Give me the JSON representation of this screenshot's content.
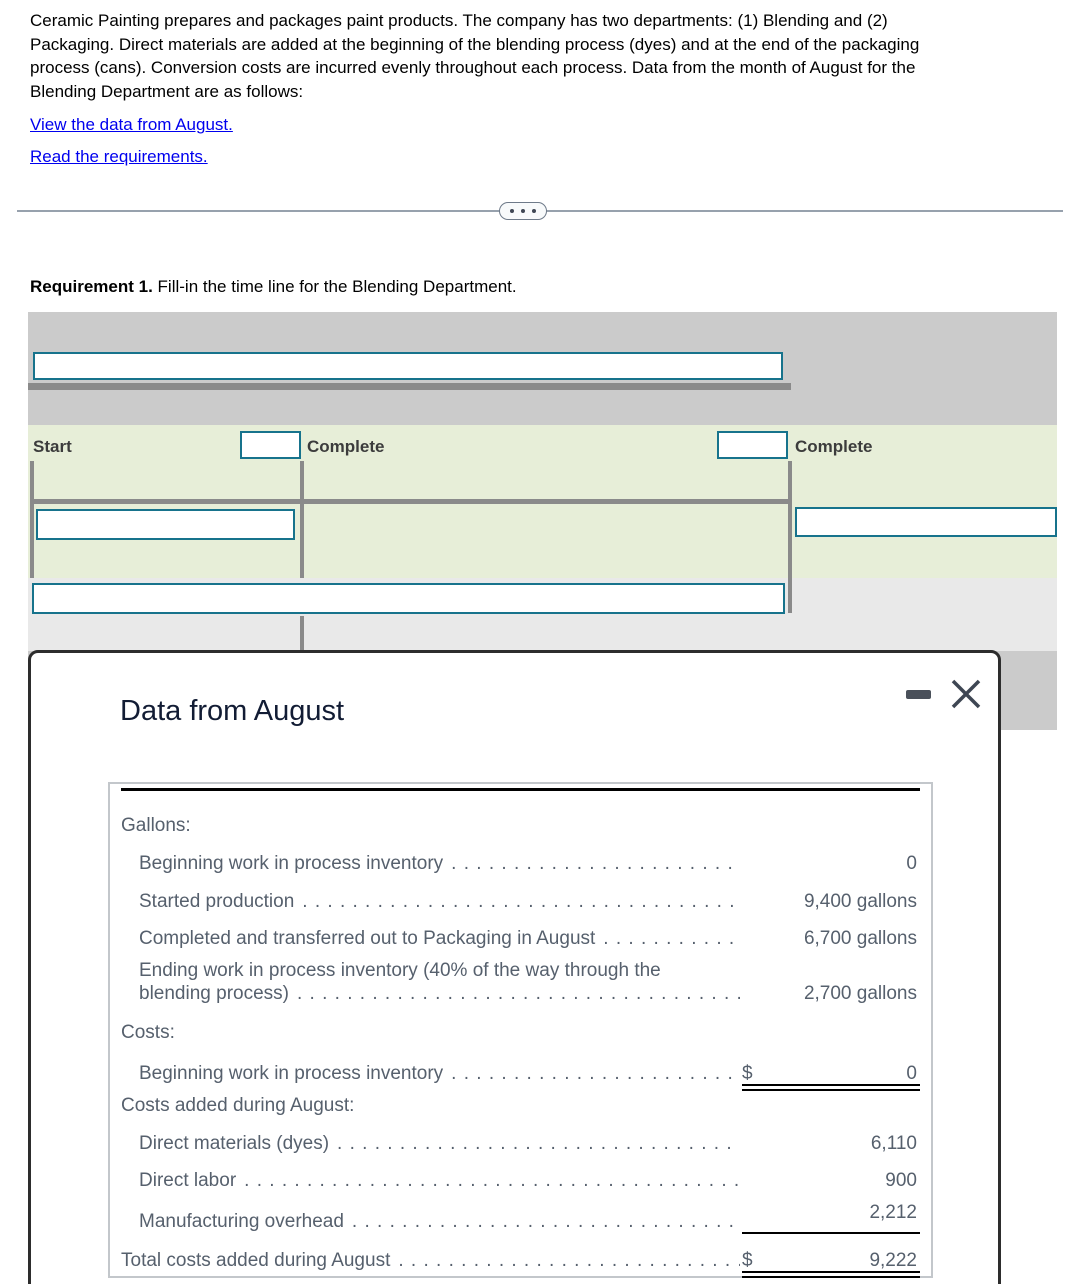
{
  "intro": {
    "lines": [
      "Ceramic Painting prepares and packages paint products. The company has two departments: (1) Blending and (2)",
      "Packaging. Direct materials are added at the beginning of the blending process (dyes) and at the end of the packaging",
      "process (cans). Conversion costs are incurred evenly throughout each process. Data from the month of August for the",
      "Blending Department are as follows:"
    ],
    "links": {
      "view_data": "View the data from August.",
      "read_requirements": "Read the requirements."
    }
  },
  "divider": {
    "ellipsis_button": "collapse-expand"
  },
  "requirement": {
    "bold": "Requirement 1.",
    "text": " Fill-in the time line for the Blending Department."
  },
  "timeline": {
    "labels": {
      "start": "Start",
      "complete1": "Complete",
      "complete2": "Complete"
    },
    "inputs": {
      "top": "",
      "percent1": "",
      "percent2": "",
      "row2_left": "",
      "row2_right": "",
      "row3": ""
    }
  },
  "modal": {
    "title": "Data from August",
    "controls": {
      "minimize": "minimize",
      "close": "close"
    },
    "table": {
      "leader": ". . . . . . . . . . . . . . . . . . . . . . . . . . . . . . . . . . . . . . . . . . . . . . . . . . . . . . . . . . . . . . . . . . . . . . . . . . . . ",
      "rows": [
        {
          "label": "Gallons:",
          "indent": 0
        },
        {
          "label": "Beginning work in process inventory",
          "indent": 1,
          "value": "0",
          "leader": true,
          "mt": "mt17"
        },
        {
          "label": "Started production",
          "indent": 1,
          "value": "9,400 gallons",
          "leader": true,
          "mt": "mt17"
        },
        {
          "label": "Completed and transferred out to Packaging in August",
          "indent": 1,
          "value": "6,700 gallons",
          "leader": true,
          "mt": "mt16"
        },
        {
          "label": "Ending work in process inventory (40% of the way through the",
          "indent": 1,
          "mt": "mt11"
        },
        {
          "label": "blending process)",
          "indent": 1,
          "value": "2,700 gallons",
          "leader": true,
          "mt": "mt2"
        },
        {
          "label": "Costs:",
          "indent": 0,
          "mt": "mt18"
        },
        {
          "label": "Beginning work in process inventory",
          "indent": 1,
          "value": "0",
          "prefix": "$",
          "leader": true,
          "underline": "double",
          "mt": "mt20"
        },
        {
          "label": "Costs added during August:",
          "indent": 0,
          "mt": "mt11"
        },
        {
          "label": "Direct materials (dyes)",
          "indent": 1,
          "value": "6,110",
          "leader": true,
          "mt": "mt17"
        },
        {
          "label": "Direct labor",
          "indent": 1,
          "value": "900",
          "leader": true,
          "mt": "mt16"
        },
        {
          "label": "Manufacturing overhead",
          "indent": 1,
          "value": "2,212",
          "leader": true,
          "underline": "single",
          "raised": true,
          "mt": "mt20"
        },
        {
          "label": "Total costs added during August",
          "indent": 0,
          "value": "9,222",
          "prefix": "$",
          "leader": true,
          "underline": "double",
          "mt": "mt18"
        }
      ]
    }
  },
  "colors": {
    "accent_input_border": "#17738c",
    "band_gray": "#cbcbcb",
    "band_green": "#e7eed8",
    "band_lightgray": "#e9e9e9",
    "timeline_line": "#8a8a8a",
    "link_blue": "#0000EE",
    "table_text": "#56606d",
    "modal_border": "#2d2d2d"
  }
}
